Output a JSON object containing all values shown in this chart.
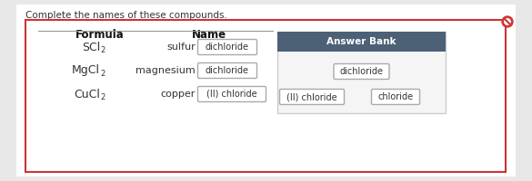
{
  "title": "Complete the names of these compounds.",
  "outer_bg": "#e8e8e8",
  "card_bg": "#ffffff",
  "inner_bg": "#ffffff",
  "border_color": "#cc3333",
  "header_formula": "Formula",
  "header_name": "Name",
  "rows": [
    {
      "formula": "SCl",
      "formula_sub": "2",
      "name_prefix": "sulfur",
      "answer": "dichloride"
    },
    {
      "formula": "MgCl",
      "formula_sub": "2",
      "name_prefix": "magnesium",
      "answer": "dichloride"
    },
    {
      "formula": "CuCl",
      "formula_sub": "2",
      "name_prefix": "copper",
      "answer": "(II) chloride"
    }
  ],
  "answer_bank_header": "Answer Bank",
  "answer_bank_header_color": "#4d6176",
  "answer_bank_bg": "#f5f5f5",
  "answer_bank_border": "#cccccc",
  "answer_bank_items_row1": [
    "dichloride"
  ],
  "answer_bank_items_row2": [
    "(II) chloride",
    "chloride"
  ],
  "title_fontsize": 7.5,
  "header_fontsize": 8.5,
  "row_fontsize": 8.0,
  "answer_fontsize": 7.0,
  "cancel_icon_color": "#cc3333",
  "text_color": "#333333",
  "header_underline_color": "#999999"
}
